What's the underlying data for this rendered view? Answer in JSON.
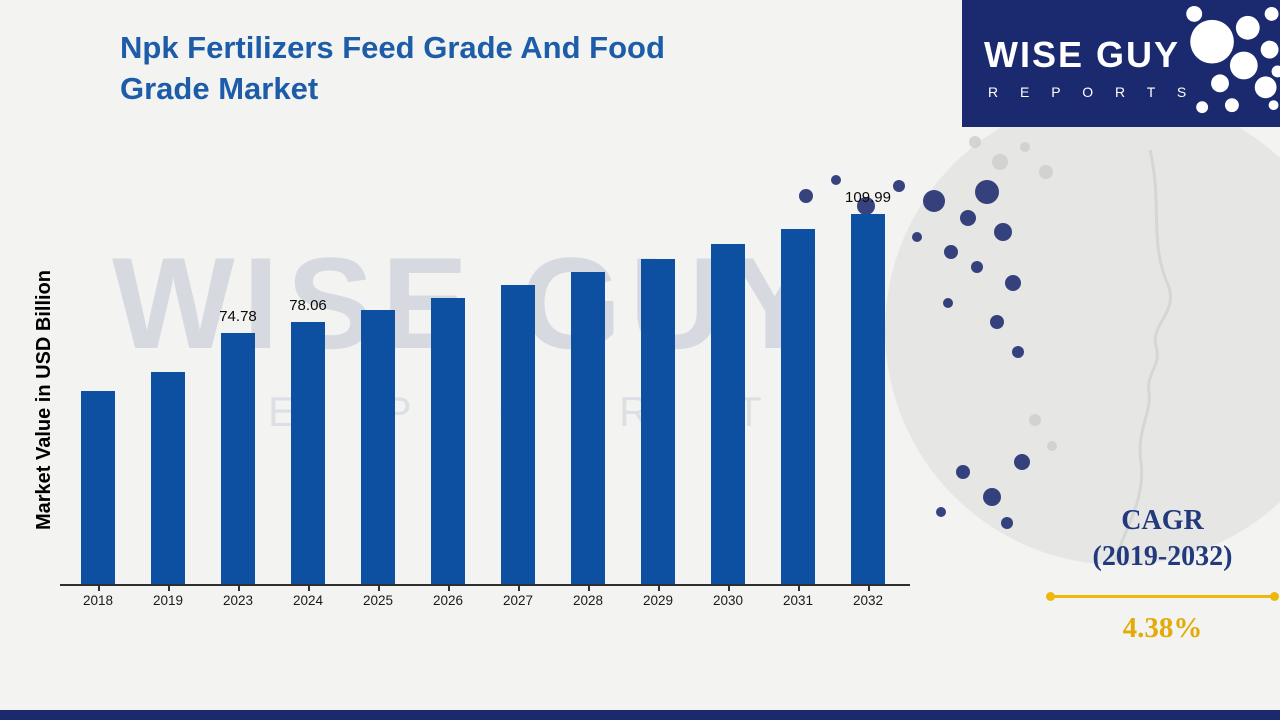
{
  "page": {
    "background": "#f3f3f1",
    "title_lines": [
      "Npk Fertilizers Feed Grade And Food",
      "Grade Market"
    ],
    "title_color": "#1d5ca8"
  },
  "logo": {
    "brand_line1": "WISE GUY",
    "brand_line2": "R E P O R T S",
    "bg_color": "#1b2a6e"
  },
  "watermark": {
    "line1": "WISE GUY",
    "line2": "R E P O R T S"
  },
  "cagr": {
    "label": "CAGR",
    "range": "(2019-2032)",
    "value": "4.38%",
    "text_color": "#223a7d",
    "accent_color": "#edb80a"
  },
  "chart_data": {
    "type": "bar",
    "title": "Npk Fertilizers Feed Grade And Food Grade Market",
    "xlabel": "",
    "ylabel": "Market Value in USD Billion",
    "categories": [
      "2018",
      "2019",
      "2023",
      "2024",
      "2025",
      "2026",
      "2027",
      "2028",
      "2029",
      "2030",
      "2031",
      "2032"
    ],
    "values": [
      57.5,
      63.0,
      74.78,
      78.06,
      81.5,
      85.1,
      88.8,
      92.7,
      96.7,
      101.0,
      105.4,
      109.99
    ],
    "value_labels": {
      "2023": "74.78",
      "2024": "78.06",
      "2032": "109.99"
    },
    "bar_color": "#0d4fa1",
    "ylim": [
      0,
      120
    ],
    "grid": false,
    "legend": false
  }
}
